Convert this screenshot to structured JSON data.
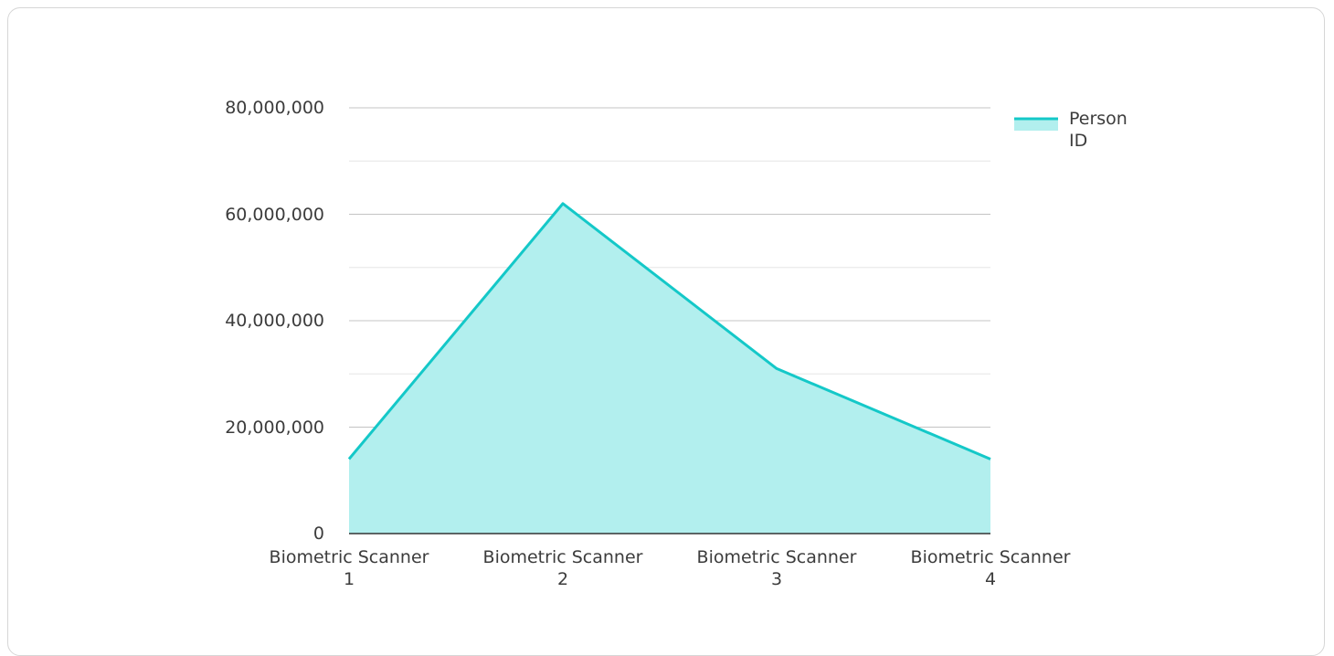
{
  "chart_data": {
    "type": "area",
    "categories": [
      "Biometric Scanner\n1",
      "Biometric Scanner\n2",
      "Biometric Scanner\n3",
      "Biometric Scanner\n4"
    ],
    "series": [
      {
        "name": "Person ID",
        "color": "#14c8c8",
        "fill": "#b2efee",
        "values": [
          14000000,
          62000000,
          31000000,
          14000000
        ]
      }
    ],
    "ylim": [
      0,
      80000000
    ],
    "yticks": [
      0,
      {
        "value": 20000000,
        "label": "20,000,000"
      },
      {
        "value": 40000000,
        "label": "40,000,000"
      },
      {
        "value": 60000000,
        "label": "60,000,000"
      },
      {
        "value": 80000000,
        "label": "80,000,000"
      }
    ],
    "minor_yticks": [
      10000000,
      30000000,
      50000000,
      70000000
    ],
    "grid": true,
    "legend": "top-right"
  }
}
